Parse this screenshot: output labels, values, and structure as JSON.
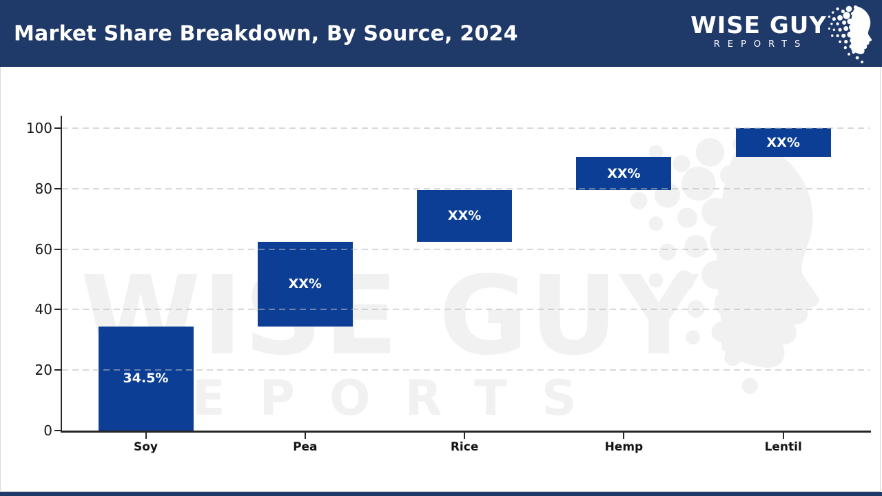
{
  "header": {
    "title": "Market Share Breakdown, By Source, 2024",
    "logo": {
      "line1": "WISE GUY",
      "line2": "REPORTS"
    }
  },
  "watermark": {
    "line1": "WISE GUY",
    "line2": "REPORTS"
  },
  "colors": {
    "header_bg": "#1f3968",
    "bar": "#0b3e94",
    "watermark": "#f1f1f1",
    "grid": "#dddddd"
  },
  "chart_data": {
    "type": "bar",
    "variant": "waterfall",
    "title": "Market Share Breakdown, By Source, 2024",
    "categories": [
      "Soy",
      "Pea",
      "Rice",
      "Hemp",
      "Lentil"
    ],
    "segments": [
      {
        "category": "Soy",
        "start": 0,
        "end": 34.5,
        "label": "34.5%"
      },
      {
        "category": "Pea",
        "start": 34.5,
        "end": 62.5,
        "label": "XX%"
      },
      {
        "category": "Rice",
        "start": 62.5,
        "end": 79.5,
        "label": "XX%"
      },
      {
        "category": "Hemp",
        "start": 79.5,
        "end": 90.5,
        "label": "XX%"
      },
      {
        "category": "Lentil",
        "start": 90.5,
        "end": 100,
        "label": "XX%"
      }
    ],
    "yticks": [
      0,
      20,
      40,
      60,
      80,
      100
    ],
    "ylim": [
      0,
      100
    ],
    "xlabel": "",
    "ylabel": "",
    "legend": "none",
    "grid": "horizontal-dashed-over-bars"
  }
}
